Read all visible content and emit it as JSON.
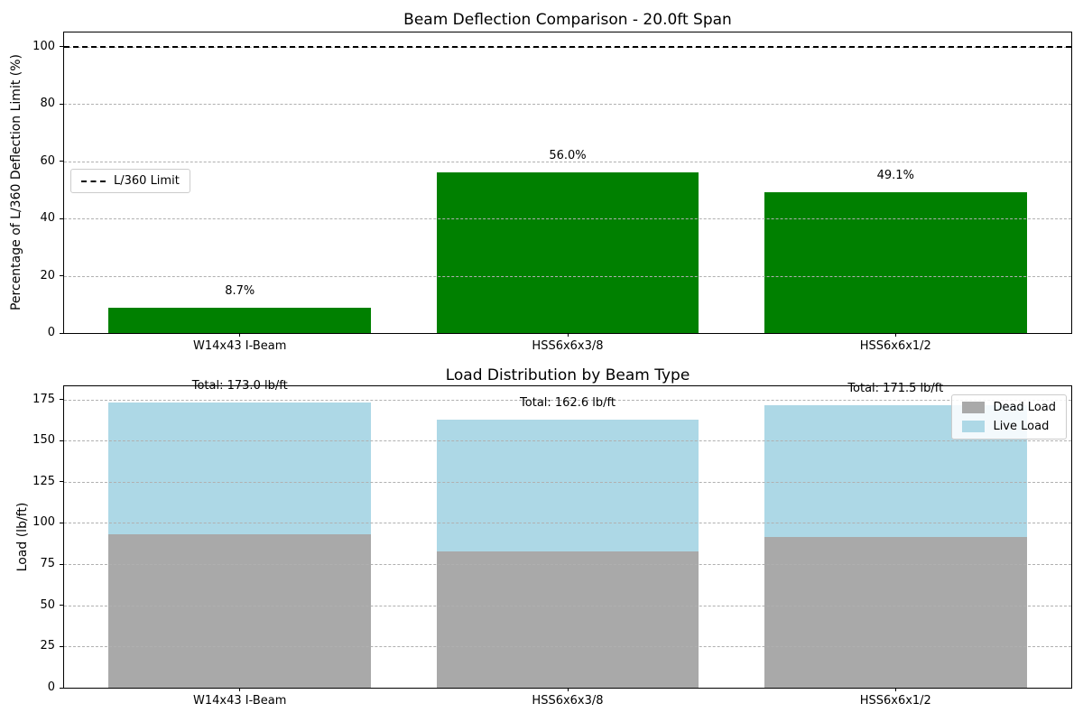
{
  "chart_data": [
    {
      "type": "bar",
      "title": "Beam Deflection Comparison - 20.0ft Span",
      "xlabel": "",
      "ylabel": "Percentage of L/360 Deflection Limit (%)",
      "categories": [
        "W14x43 I-Beam",
        "HSS6x6x3/8",
        "HSS6x6x1/2"
      ],
      "values": [
        8.7,
        56.0,
        49.1
      ],
      "value_labels": [
        "8.7%",
        "56.0%",
        "49.1%"
      ],
      "bar_color": "#008000",
      "yticks": [
        0,
        20,
        40,
        60,
        80,
        100
      ],
      "ylim": [
        0,
        105
      ],
      "grid": true,
      "grid_style": "dashed",
      "reference_line": {
        "value": 100,
        "color": "#000000",
        "style": "dashed",
        "label": "L/360 Limit"
      },
      "legend": {
        "position": "center-left",
        "entries": [
          {
            "label": "L/360 Limit",
            "marker": "dashed-line",
            "color": "#000000"
          }
        ]
      }
    },
    {
      "type": "stacked-bar",
      "title": "Load Distribution by Beam Type",
      "xlabel": "",
      "ylabel": "Load (lb/ft)",
      "categories": [
        "W14x43 I-Beam",
        "HSS6x6x3/8",
        "HSS6x6x1/2"
      ],
      "series": [
        {
          "name": "Dead Load",
          "color": "#a9a9a9",
          "values": [
            93.0,
            82.6,
            91.5
          ]
        },
        {
          "name": "Live Load",
          "color": "#add8e6",
          "values": [
            80.0,
            80.0,
            80.0
          ]
        }
      ],
      "totals": [
        173.0,
        162.6,
        171.5
      ],
      "total_labels": [
        "Total: 173.0 lb/ft",
        "Total: 162.6 lb/ft",
        "Total: 171.5 lb/ft"
      ],
      "yticks": [
        0,
        25,
        50,
        75,
        100,
        125,
        150,
        175
      ],
      "ylim": [
        0,
        183
      ],
      "grid": true,
      "grid_style": "dashed",
      "legend": {
        "position": "upper-right",
        "entries": [
          {
            "label": "Dead Load",
            "marker": "patch",
            "color": "#a9a9a9"
          },
          {
            "label": "Live Load",
            "marker": "patch",
            "color": "#add8e6"
          }
        ]
      }
    }
  ]
}
